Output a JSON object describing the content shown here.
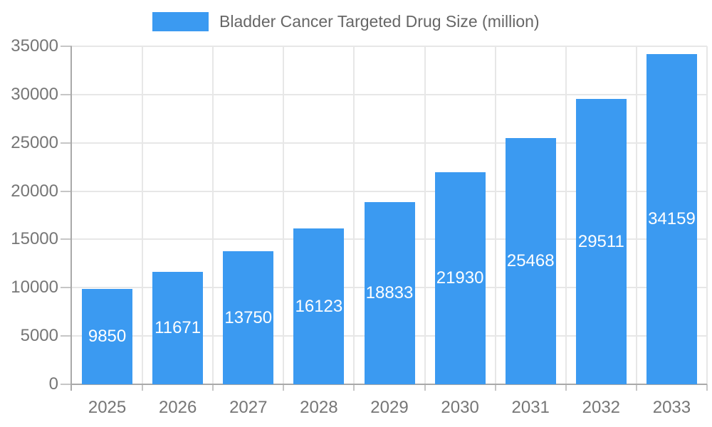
{
  "chart_data": {
    "type": "bar",
    "title": "Bladder Cancer Targeted Drug Size (million)",
    "legend": {
      "position": "top-center"
    },
    "categories": [
      "2025",
      "2026",
      "2027",
      "2028",
      "2029",
      "2030",
      "2031",
      "2032",
      "2033"
    ],
    "series": [
      {
        "name": "Bladder Cancer Targeted Drug Size (million)",
        "values": [
          9850,
          11671,
          13750,
          16123,
          18833,
          21930,
          25468,
          29511,
          34159
        ]
      }
    ],
    "xlabel": "",
    "ylabel": "",
    "ylim": [
      0,
      35000
    ],
    "yticks": [
      0,
      5000,
      10000,
      15000,
      20000,
      25000,
      30000,
      35000
    ],
    "grid": true,
    "value_labels": "centered-inside-bars",
    "colors": {
      "bar": "#3B9AF1",
      "value_label": "#FFFFFF",
      "axis_label": "#767676",
      "legend_text": "#666666",
      "axis_line": "#A9A9A9",
      "tick": "#C6C6C6",
      "gridline": "#E7E7E7",
      "background": "#FFFFFF"
    }
  }
}
